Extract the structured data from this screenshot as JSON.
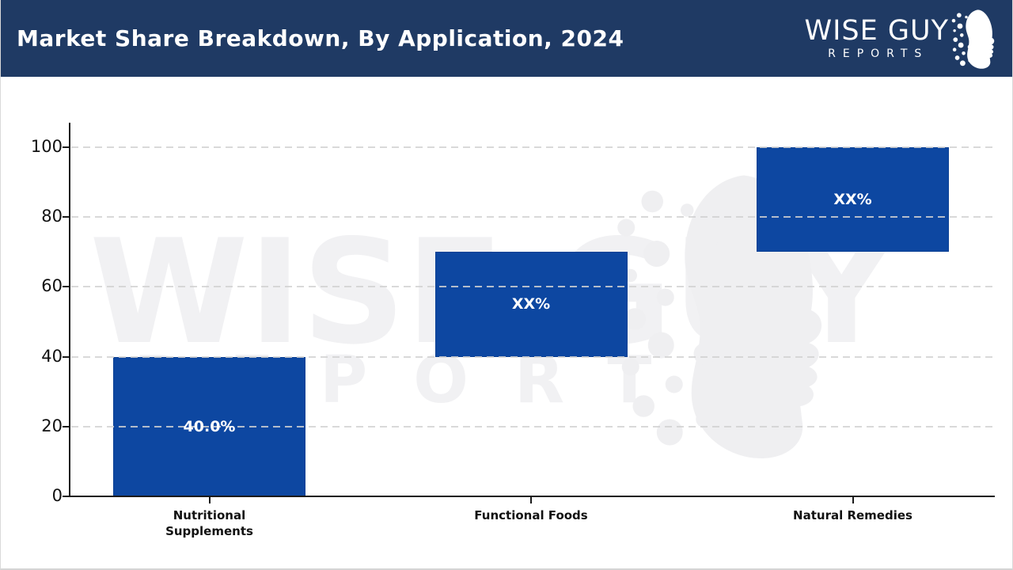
{
  "header": {
    "title": "Market Share Breakdown, By Application, 2024",
    "bg_color": "#1f3a64",
    "logo": {
      "line1": "WISE GUY",
      "line2": "REPORTS"
    }
  },
  "watermark": {
    "line1": "WISE GUY",
    "line2": "REPORTS"
  },
  "chart_data": {
    "type": "bar",
    "variant": "waterfall",
    "title": "Market Share Breakdown, By Application, 2024",
    "categories": [
      "Nutritional Supplements",
      "Functional Foods",
      "Natural Remedies"
    ],
    "segments": [
      {
        "category": "Nutritional Supplements",
        "start": 0,
        "end": 40,
        "label": "40.0%"
      },
      {
        "category": "Functional Foods",
        "start": 40,
        "end": 70,
        "label": "XX%"
      },
      {
        "category": "Natural Remedies",
        "start": 70,
        "end": 100,
        "label": "XX%"
      }
    ],
    "yticks": [
      0,
      20,
      40,
      60,
      80,
      100
    ],
    "ylim": [
      0,
      107
    ],
    "xlabel": "",
    "ylabel": "",
    "grid": "horizontal-dashed",
    "legend": "none",
    "bar_color": "#0d47a1",
    "bar_label_color": "#ffffff"
  }
}
